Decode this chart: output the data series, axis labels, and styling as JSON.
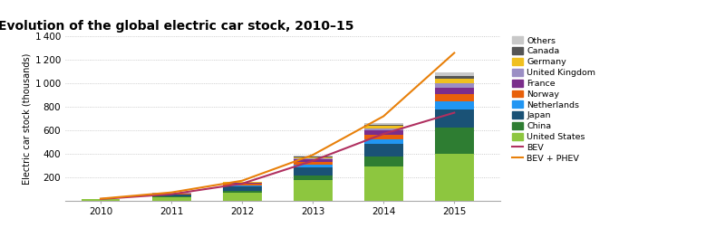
{
  "title": "Evolution of the global electric car stock, 2010–15",
  "ylabel": "Electric car stock (thousands)",
  "years": [
    2010,
    2011,
    2012,
    2013,
    2014,
    2015
  ],
  "bar_data": {
    "United States": [
      10,
      30,
      71,
      172,
      290,
      400
    ],
    "China": [
      1,
      5,
      13,
      45,
      83,
      220
    ],
    "Japan": [
      2,
      15,
      35,
      68,
      108,
      155
    ],
    "Netherlands": [
      1,
      5,
      12,
      25,
      43,
      75
    ],
    "Norway": [
      1,
      4,
      10,
      22,
      38,
      55
    ],
    "France": [
      1,
      4,
      10,
      20,
      35,
      55
    ],
    "United Kingdom": [
      0,
      1,
      4,
      10,
      22,
      45
    ],
    "Germany": [
      0,
      1,
      4,
      10,
      18,
      35
    ],
    "Canada": [
      0,
      1,
      2,
      5,
      10,
      20
    ],
    "Others": [
      0,
      1,
      3,
      8,
      15,
      30
    ]
  },
  "bar_colors": {
    "United States": "#8dc63f",
    "China": "#2e7d32",
    "Japan": "#1a5276",
    "Netherlands": "#2196f3",
    "Norway": "#e8600a",
    "France": "#7b2d8b",
    "United Kingdom": "#9b8ec4",
    "Germany": "#f0c020",
    "Canada": "#555555",
    "Others": "#c8c8c8"
  },
  "line_bev": [
    14,
    55,
    145,
    340,
    570,
    750
  ],
  "line_bev_phev": [
    17,
    70,
    170,
    390,
    720,
    1260
  ],
  "line_bev_color": "#b03060",
  "line_bev_phev_color": "#e8800a",
  "ylim": [
    0,
    1400
  ],
  "yticks": [
    0,
    200,
    400,
    600,
    800,
    1000,
    1200,
    1400
  ],
  "background_color": "#ffffff",
  "title_fontsize": 10,
  "axis_fontsize": 7.5
}
